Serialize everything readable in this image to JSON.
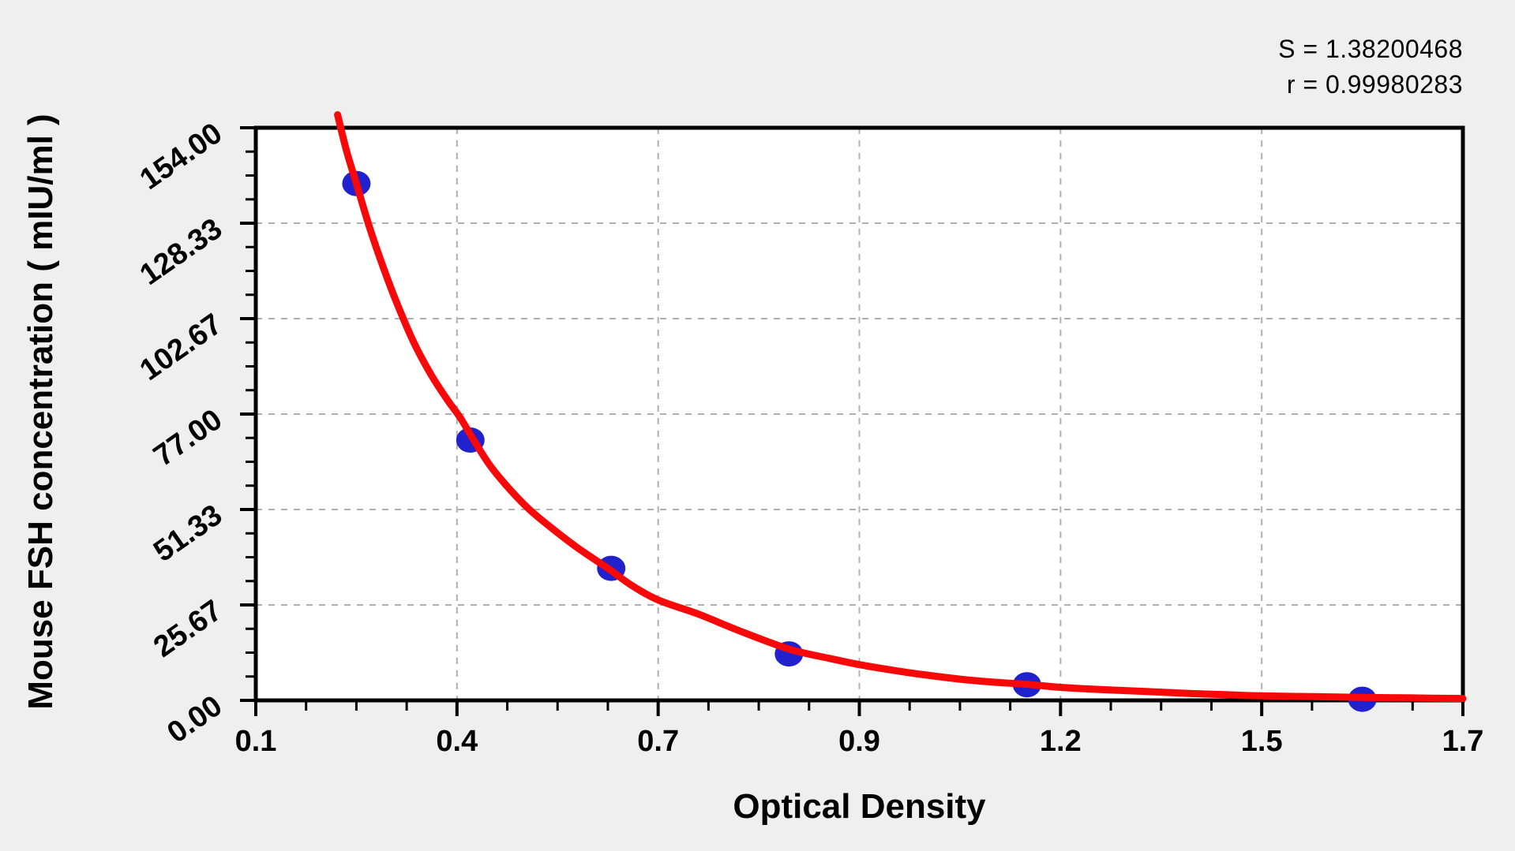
{
  "page": {
    "background": "#efefef"
  },
  "chart_data": {
    "type": "scatter",
    "title": "",
    "xlabel": "Optical Density",
    "ylabel": "Mouse FSH concentration ( mIU/ml )",
    "annotations": [
      "S = 1.38200468",
      "r = 0.99980283"
    ],
    "x_ticks": [
      0.1,
      0.4,
      0.7,
      0.9,
      1.2,
      1.5,
      1.7
    ],
    "x_tick_labels": [
      "0.1",
      "0.4",
      "0.7",
      "0.9",
      "1.2",
      "1.5",
      "1.7"
    ],
    "y_tick_values": [
      0,
      25.67,
      51.33,
      77.0,
      102.67,
      128.33,
      154.0
    ],
    "y_tick_labels": [
      "0.00",
      "25.67",
      "51.33",
      "77.00",
      "102.67",
      "128.33",
      "154.00"
    ],
    "ylim": [
      0,
      154
    ],
    "xlim_labels": [
      0.1,
      1.7
    ],
    "layout": {
      "grid": "dashed gridlines at interior major ticks only",
      "minor_ticks_between_majors": 3,
      "x_major_ticks_evenly_spaced": true,
      "y_tick_labels_rotated_deg": -35,
      "legend": "none"
    },
    "series": [
      {
        "name": "standard-points",
        "type": "scatter",
        "color": "#2121cd",
        "points": [
          [
            0.25,
            139
          ],
          [
            0.42,
            70
          ],
          [
            0.63,
            35.5
          ],
          [
            0.83,
            12.5
          ],
          [
            1.15,
            4.2
          ],
          [
            1.6,
            0.3
          ]
        ]
      },
      {
        "name": "fitted-curve",
        "type": "line",
        "color": "#f80808",
        "points": [
          [
            0.222,
            157.5
          ],
          [
            0.235,
            148
          ],
          [
            0.25,
            139
          ],
          [
            0.27,
            127
          ],
          [
            0.29,
            116.5
          ],
          [
            0.31,
            107
          ],
          [
            0.335,
            96.5
          ],
          [
            0.36,
            88
          ],
          [
            0.385,
            81
          ],
          [
            0.405,
            76
          ],
          [
            0.425,
            70
          ],
          [
            0.45,
            63
          ],
          [
            0.48,
            56.5
          ],
          [
            0.51,
            51
          ],
          [
            0.545,
            45.8
          ],
          [
            0.58,
            41
          ],
          [
            0.625,
            35.5
          ],
          [
            0.66,
            31
          ],
          [
            0.7,
            27
          ],
          [
            0.74,
            23.2
          ],
          [
            0.78,
            18.8
          ],
          [
            0.83,
            13.8
          ],
          [
            0.87,
            11.3
          ],
          [
            0.9,
            9.6
          ],
          [
            0.95,
            8.1
          ],
          [
            1.0,
            6.8
          ],
          [
            1.05,
            5.7
          ],
          [
            1.1,
            4.9
          ],
          [
            1.15,
            4.3
          ],
          [
            1.2,
            3.5
          ],
          [
            1.25,
            3.0
          ],
          [
            1.3,
            2.6
          ],
          [
            1.35,
            2.2
          ],
          [
            1.4,
            1.8
          ],
          [
            1.45,
            1.5
          ],
          [
            1.5,
            1.2
          ],
          [
            1.55,
            1.0
          ],
          [
            1.6,
            0.8
          ],
          [
            1.65,
            0.65
          ],
          [
            1.7,
            0.5
          ]
        ]
      }
    ],
    "colors": {
      "curve": "#f80808",
      "marker": "#2121cd",
      "grid": "#b0b0b0",
      "axis": "#000000",
      "plot_bg": "#ffffff",
      "page_bg": "#efefef",
      "text": "#000000"
    }
  }
}
